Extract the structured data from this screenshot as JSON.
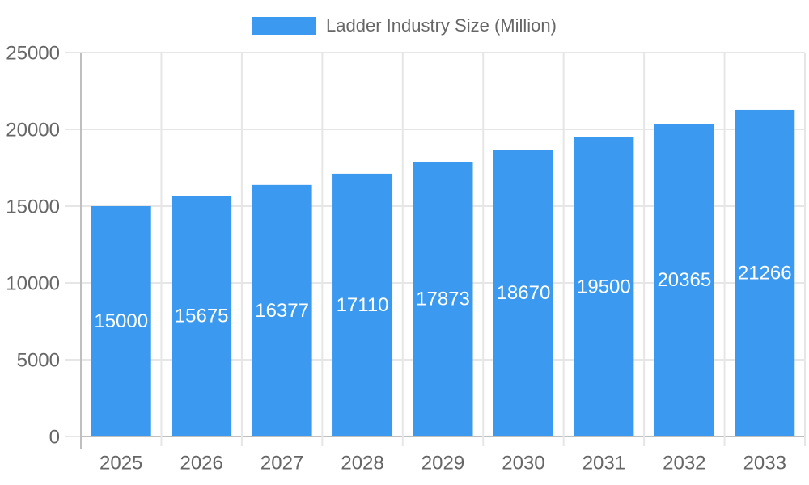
{
  "legend": {
    "label": "Ladder Industry Size (Million)"
  },
  "chart_data": {
    "type": "bar",
    "title": "Ladder Industry Size (Million)",
    "xlabel": "",
    "ylabel": "",
    "categories": [
      "2025",
      "2026",
      "2027",
      "2028",
      "2029",
      "2030",
      "2031",
      "2032",
      "2033"
    ],
    "values": [
      15000,
      15675,
      16377,
      17110,
      17873,
      18670,
      19500,
      20365,
      21266
    ],
    "value_labels": [
      "15000",
      "15675",
      "16377",
      "17110",
      "17873",
      "18670",
      "19500",
      "20365",
      "21266"
    ],
    "ylim": [
      0,
      25000
    ],
    "yticks": [
      0,
      5000,
      10000,
      15000,
      20000,
      25000
    ],
    "grid": true,
    "legend_position": "top",
    "colors": {
      "bar": "#3b9af0",
      "value_label": "#ffffff",
      "axis_text": "#666666",
      "gridline": "#e6e6e6",
      "axis_line": "#bfbfbf"
    }
  }
}
